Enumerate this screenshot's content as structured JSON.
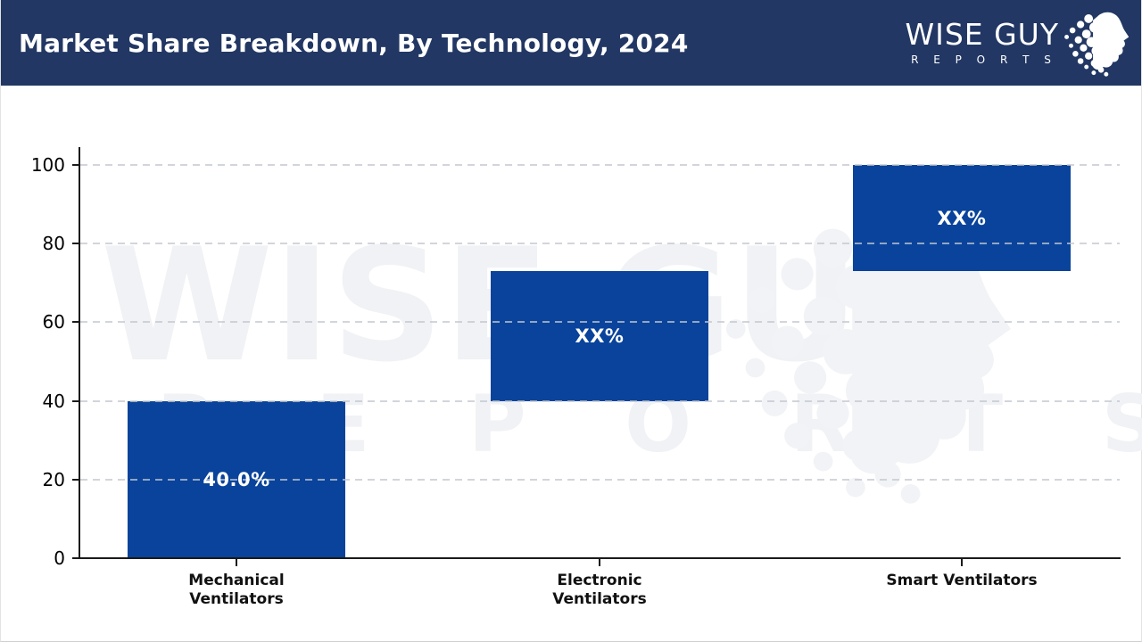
{
  "header": {
    "title": "Market Share Breakdown, By Technology, 2024",
    "logo": {
      "primary": "WISE GUY",
      "secondary": "R E P O R T S"
    },
    "bg_color": "#223763"
  },
  "watermark": {
    "primary": "WISE GUY",
    "secondary": "R E P O R T S"
  },
  "chart_data": {
    "type": "bar",
    "subtype": "waterfall",
    "title": "Market Share Breakdown, By Technology, 2024",
    "categories": [
      "Mechanical Ventilators",
      "Electronic Ventilators",
      "Smart Ventilators"
    ],
    "x_labels": [
      [
        "Mechanical",
        "Ventilators"
      ],
      [
        "Electronic",
        "Ventilators"
      ],
      [
        "Smart Ventilators"
      ]
    ],
    "segments": [
      {
        "category": "Mechanical Ventilators",
        "start": 0,
        "end": 40,
        "value_label": "40.0%"
      },
      {
        "category": "Electronic Ventilators",
        "start": 40,
        "end": 73,
        "value_label": "XX%"
      },
      {
        "category": "Smart Ventilators",
        "start": 73,
        "end": 100,
        "value_label": "XX%"
      }
    ],
    "ylim": [
      0,
      100
    ],
    "yticks": [
      0,
      20,
      40,
      60,
      80,
      100
    ],
    "xlabel": "",
    "ylabel": "",
    "grid": "horizontal-dashed",
    "legend": "none",
    "bar_color": "#09439B",
    "axis_color": "#1a1a1a",
    "gridline_color": "#c9cdd5",
    "value_label_color": "#ffffff"
  }
}
